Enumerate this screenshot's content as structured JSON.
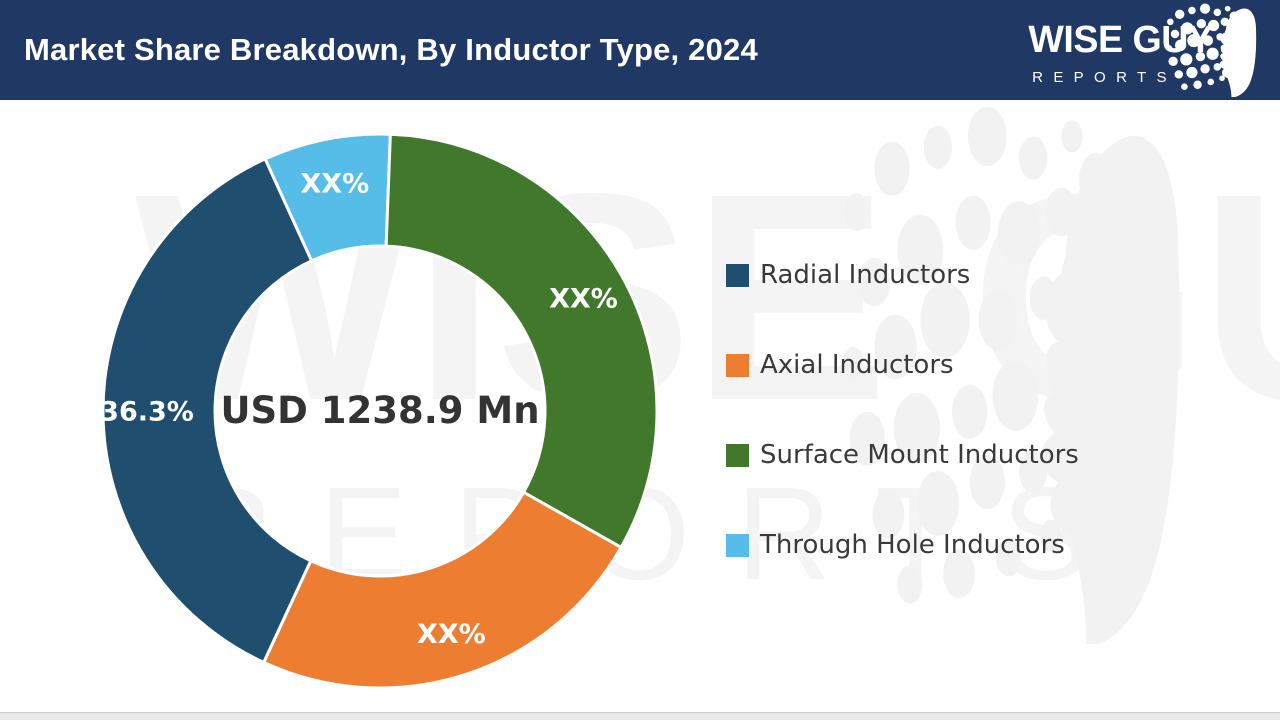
{
  "header": {
    "title": "Market Share Breakdown, By Inductor Type, 2024",
    "bg_color": "#203864",
    "logo": {
      "line1": "WISE GUY",
      "line2": "REPORTS"
    }
  },
  "watermark": {
    "line1": "WISE GUY",
    "line2": "REPORTS"
  },
  "chart_data": {
    "type": "pie",
    "subtype": "donut",
    "title": "Market Share Breakdown, By Inductor Type, 2024",
    "center_label": "USD 1238.9 Mn",
    "start_angle_deg": -24.5,
    "direction": "clockwise",
    "slices": [
      {
        "label": "Through Hole Inductors",
        "display_label": "XX%",
        "value_pct_est": 7.4,
        "labeled": false,
        "color": "#55BDE8"
      },
      {
        "label": "Surface Mount Inductors",
        "display_label": "XX%",
        "value_pct_est": 32.6,
        "labeled": false,
        "color": "#41782C"
      },
      {
        "label": "Axial Inductors",
        "display_label": "XX%",
        "value_pct_est": 23.7,
        "labeled": false,
        "color": "#ED7D31"
      },
      {
        "label": "Radial Inductors",
        "display_label": "36.3%",
        "value_pct_est": 36.3,
        "labeled": true,
        "color": "#1F4E6E"
      }
    ]
  },
  "legend": {
    "items": [
      {
        "label": "Radial Inductors",
        "color": "#1F4E6E"
      },
      {
        "label": "Axial Inductors",
        "color": "#ED7D31"
      },
      {
        "label": "Surface Mount Inductors",
        "color": "#41782C"
      },
      {
        "label": "Through Hole Inductors",
        "color": "#55BDE8"
      }
    ]
  }
}
